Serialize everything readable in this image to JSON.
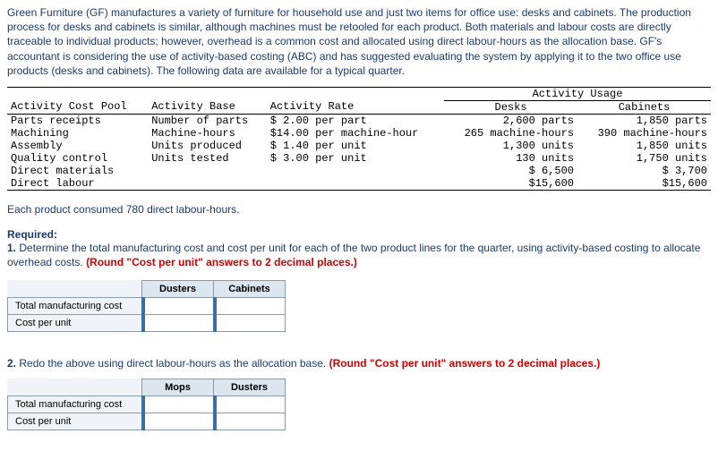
{
  "intro": "Green Furniture (GF) manufactures a variety of furniture for household use and just two items for office use: desks and cabinets. The production process for desks and cabinets is similar, although machines must be retooled for each product. Both materials and labour costs are directly traceable to individual products; however, overhead is a common cost and allocated using direct labour-hours as the allocation base. GF's accountant is considering the use of activity-based costing (ABC) and has suggested evaluating the system by applying it to the two office use products (desks and cabinets). The following data are available for a typical quarter.",
  "headers": {
    "pool": "Activity Cost Pool",
    "base": "Activity Base",
    "rate": "Activity Rate",
    "usage_group": "Activity Usage",
    "desks": "Desks",
    "cabinets": "Cabinets"
  },
  "rows": [
    {
      "pool": "Parts receipts",
      "base": "Number of parts",
      "rate": "$ 2.00 per part",
      "desks": "2,600 parts",
      "cabinets": "1,850 parts"
    },
    {
      "pool": "Machining",
      "base": "Machine-hours",
      "rate": "$14.00 per machine-hour",
      "desks": "265 machine-hours",
      "cabinets": "390 machine-hours"
    },
    {
      "pool": "Assembly",
      "base": "Units produced",
      "rate": "$ 1.40 per unit",
      "desks": "1,300 units",
      "cabinets": "1,850 units"
    },
    {
      "pool": "Quality control",
      "base": "Units tested",
      "rate": "$ 3.00 per unit",
      "desks": "130 units",
      "cabinets": "1,750 units"
    },
    {
      "pool": "Direct materials",
      "base": "",
      "rate": "",
      "desks": "$ 6,500",
      "cabinets": "$ 3,700"
    },
    {
      "pool": "Direct labour",
      "base": "",
      "rate": "",
      "desks": "$15,600",
      "cabinets": "$15,600"
    }
  ],
  "consumed": "Each product consumed 780 direct labour-hours.",
  "required_label": "Required:",
  "q1_num": "1.",
  "q1_text": " Determine the total manufacturing cost and cost per unit for each of the two product lines for the quarter, using activity-based costing to allocate overhead costs. ",
  "round_note": "(Round \"Cost per unit\" answers to 2 decimal places.)",
  "answer1": {
    "col1": "Dusters",
    "col2": "Cabinets",
    "row1": "Total manufacturing cost",
    "row2": "Cost per unit"
  },
  "q2_num": "2.",
  "q2_text": " Redo the above using direct labour-hours as the allocation base. ",
  "answer2": {
    "col1": "Mops",
    "col2": "Dusters",
    "row1": "Total manufacturing cost",
    "row2": "Cost per unit"
  }
}
